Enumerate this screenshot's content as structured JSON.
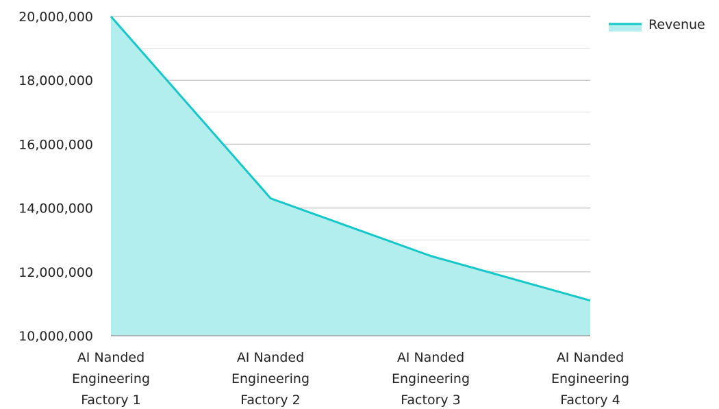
{
  "chart_data": {
    "type": "area",
    "title": "",
    "xlabel": "",
    "ylabel": "",
    "categories": [
      [
        "AI Nanded",
        "Engineering",
        "Factory 1"
      ],
      [
        "AI Nanded",
        "Engineering",
        "Factory 2"
      ],
      [
        "AI Nanded",
        "Engineering",
        "Factory 3"
      ],
      [
        "AI Nanded",
        "Engineering",
        "Factory 4"
      ]
    ],
    "series": [
      {
        "name": "Revenue",
        "values": [
          20000000,
          14300000,
          12500000,
          11100000
        ],
        "line_color": "#16C7C7",
        "fill_color": "#B2EEEE"
      }
    ],
    "ylim": [
      10000000,
      20000000
    ],
    "y_ticks": [
      "10,000,000",
      "12,000,000",
      "14,000,000",
      "16,000,000",
      "18,000,000",
      "20,000,000"
    ],
    "y_tick_values": [
      10000000,
      12000000,
      14000000,
      16000000,
      18000000,
      20000000
    ],
    "grid": true,
    "legend_position": "top-right"
  }
}
